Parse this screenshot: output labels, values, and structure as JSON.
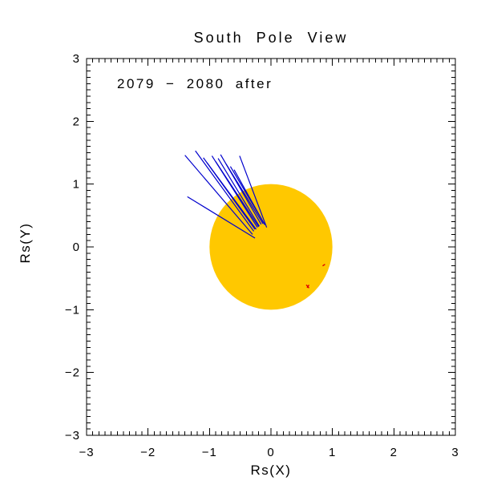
{
  "chart_data": {
    "type": "line",
    "title": "South Pole View",
    "annotation": "2079 − 2080 after",
    "xlabel": "Rs(X)",
    "ylabel": "Rs(Y)",
    "xlim": [
      -3,
      3
    ],
    "ylim": [
      -3,
      3
    ],
    "xticks": [
      -3,
      -2,
      -1,
      0,
      1,
      2,
      3
    ],
    "yticks": [
      -3,
      -2,
      -1,
      0,
      1,
      2,
      3
    ],
    "xtick_labels": [
      "−3",
      "−2",
      "−1",
      "0",
      "1",
      "2",
      "3"
    ],
    "ytick_labels": [
      "−3",
      "−2",
      "−1",
      "0",
      "1",
      "2",
      "3"
    ],
    "minor_tick_step": 0.1,
    "grid": false,
    "legend": null,
    "background_color": "#ffffff",
    "axis_color": "#000000",
    "sun_disk": {
      "cx": 0,
      "cy": 0,
      "radius": 1,
      "color": "#ffc800"
    },
    "rays": {
      "name": "field-line-rays",
      "color": "#0000cd",
      "segments": [
        [
          -1.4,
          1.46,
          -0.3,
          0.2
        ],
        [
          -1.23,
          1.53,
          -0.28,
          0.25
        ],
        [
          -1.1,
          1.42,
          -0.26,
          0.28
        ],
        [
          -1.04,
          1.34,
          -0.24,
          0.28
        ],
        [
          -0.96,
          1.45,
          -0.22,
          0.31
        ],
        [
          -0.9,
          1.36,
          -0.2,
          0.32
        ],
        [
          -0.86,
          1.41,
          -0.19,
          0.33
        ],
        [
          -0.82,
          1.47,
          -0.16,
          0.36
        ],
        [
          -0.73,
          1.32,
          -0.13,
          0.37
        ],
        [
          -0.66,
          1.28,
          -0.11,
          0.37
        ],
        [
          -0.6,
          1.23,
          -0.1,
          0.35
        ],
        [
          -0.51,
          1.45,
          -0.07,
          0.31
        ],
        [
          -1.36,
          0.8,
          -0.26,
          0.14
        ]
      ]
    },
    "red_markers": {
      "name": "surface-feature-marks",
      "color": "#dd0000",
      "points": [
        [
          0.86,
          -0.29
        ],
        [
          0.6,
          -0.63
        ]
      ]
    }
  }
}
